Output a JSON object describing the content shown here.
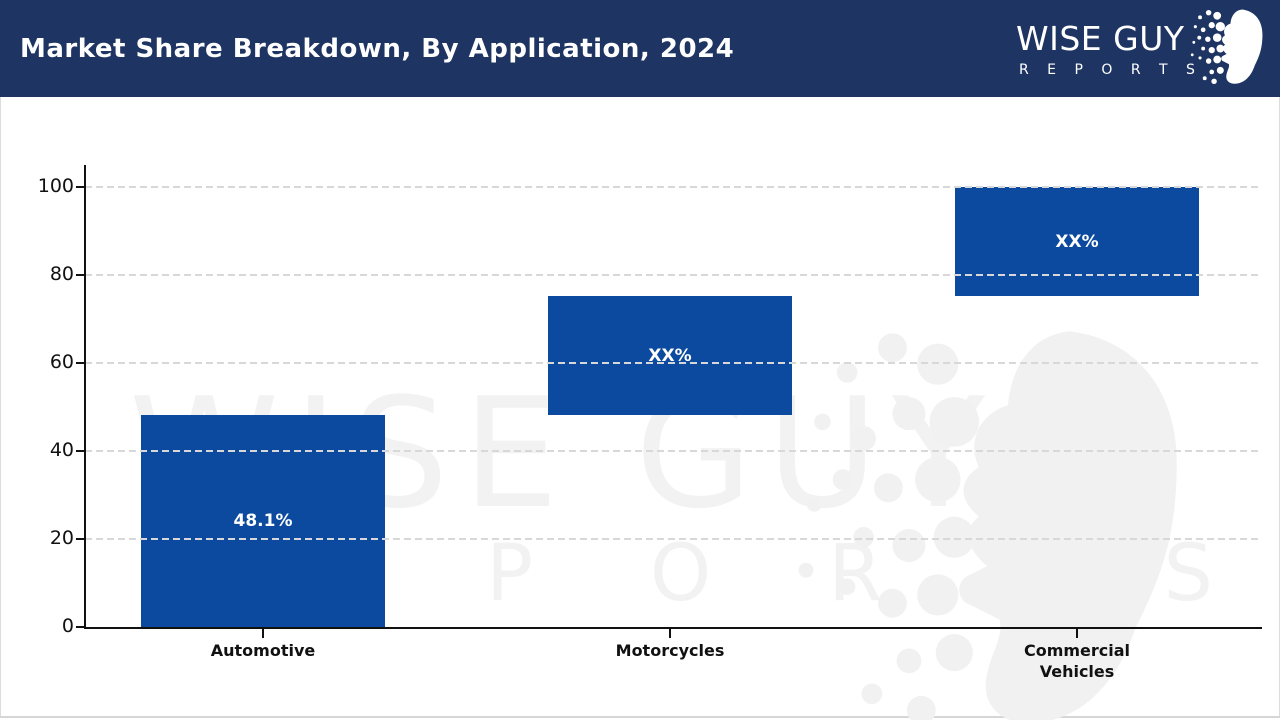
{
  "header": {
    "title": "Market Share Breakdown, By Application, 2024",
    "bg_color": "#1e3462",
    "logo": {
      "line1": "WISE GUY",
      "line2": "R E P O R T S"
    }
  },
  "watermark": {
    "line1": "WISE GUY",
    "line2": "R E P O R T S"
  },
  "chart_data": {
    "type": "bar",
    "subtype": "waterfall",
    "title": "Market Share Breakdown, By Application, 2024",
    "categories": [
      "Automotive",
      "Motorcycles",
      "Commercial Vehicles"
    ],
    "series": [
      {
        "name": "Market Share",
        "segments": [
          {
            "category": "Automotive",
            "start": 0,
            "end": 48.1
          },
          {
            "category": "Motorcycles",
            "start": 48.1,
            "end": 75.2
          },
          {
            "category": "Commercial Vehicles",
            "start": 75.2,
            "end": 100
          }
        ]
      }
    ],
    "bar_labels": [
      "48.1%",
      "XX%",
      "XX%"
    ],
    "yticks": [
      0,
      20,
      40,
      60,
      80,
      100
    ],
    "ylim": [
      0,
      105
    ],
    "xlabel": "",
    "ylabel": "",
    "bar_color": "#0b4a9e",
    "label_color": "#ffffff",
    "grid": "horizontal-dashed",
    "grid_color": "#d8d8d8",
    "legend": "none"
  }
}
